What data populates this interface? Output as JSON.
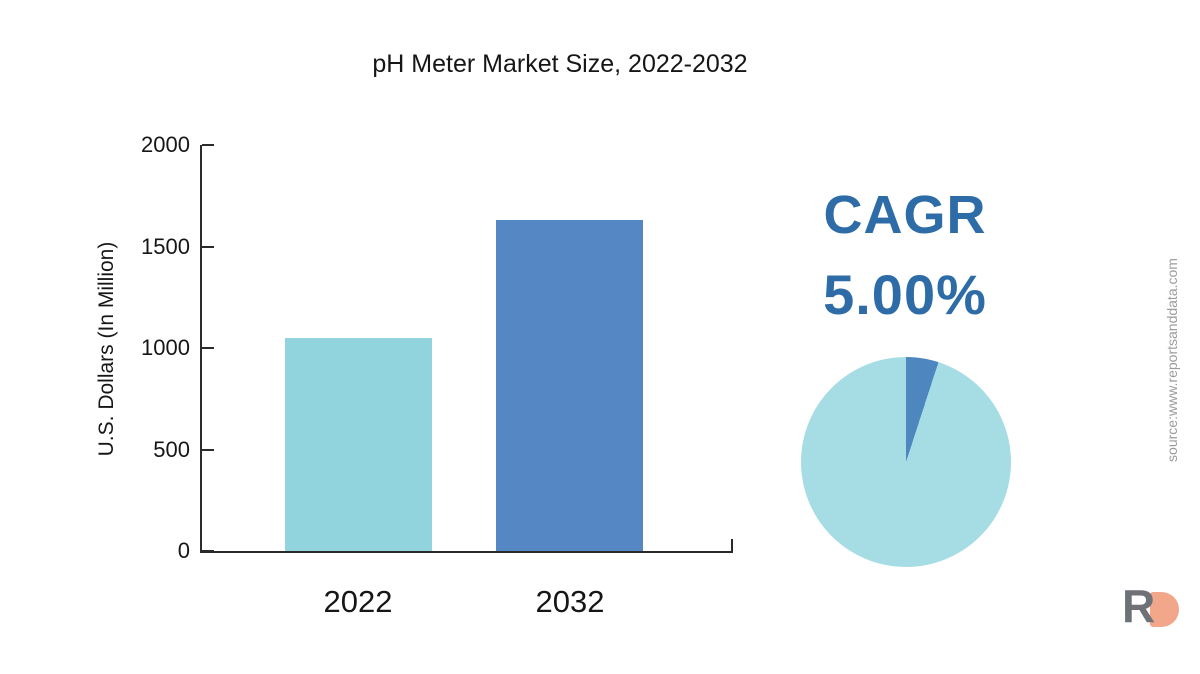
{
  "title": "pH Meter Market Size, 2022-2032",
  "chart_data": {
    "type": "bar",
    "title": "pH Meter Market Size, 2022-2032",
    "categories": [
      "2022",
      "2032"
    ],
    "values": [
      1050,
      1630
    ],
    "xlabel": "",
    "ylabel": "U.S. Dollars (In Million)",
    "yticks": [
      0,
      500,
      1000,
      1500,
      2000
    ],
    "ylim": [
      0,
      2000
    ],
    "grid": "off",
    "legend": "none",
    "bar_colors": [
      "#92d4dd",
      "#5587c5"
    ],
    "pie": {
      "type": "pie",
      "description": "CAGR share pie",
      "values": [
        5,
        95
      ],
      "colors": [
        "#4e86c0",
        "#a6dde5"
      ]
    }
  },
  "cagr": {
    "label": "CAGR",
    "value": "5.00%",
    "text_color": "#2d6ca6"
  },
  "source": "source:www.reportsanddata.com",
  "logo": {
    "letter_r": "R"
  },
  "colors": {
    "title_text": "#161616",
    "axis": "#2b2b2b",
    "source_text": "#9c9c9c",
    "logo_r": "#6e7277",
    "logo_d": "#f3a78a"
  }
}
